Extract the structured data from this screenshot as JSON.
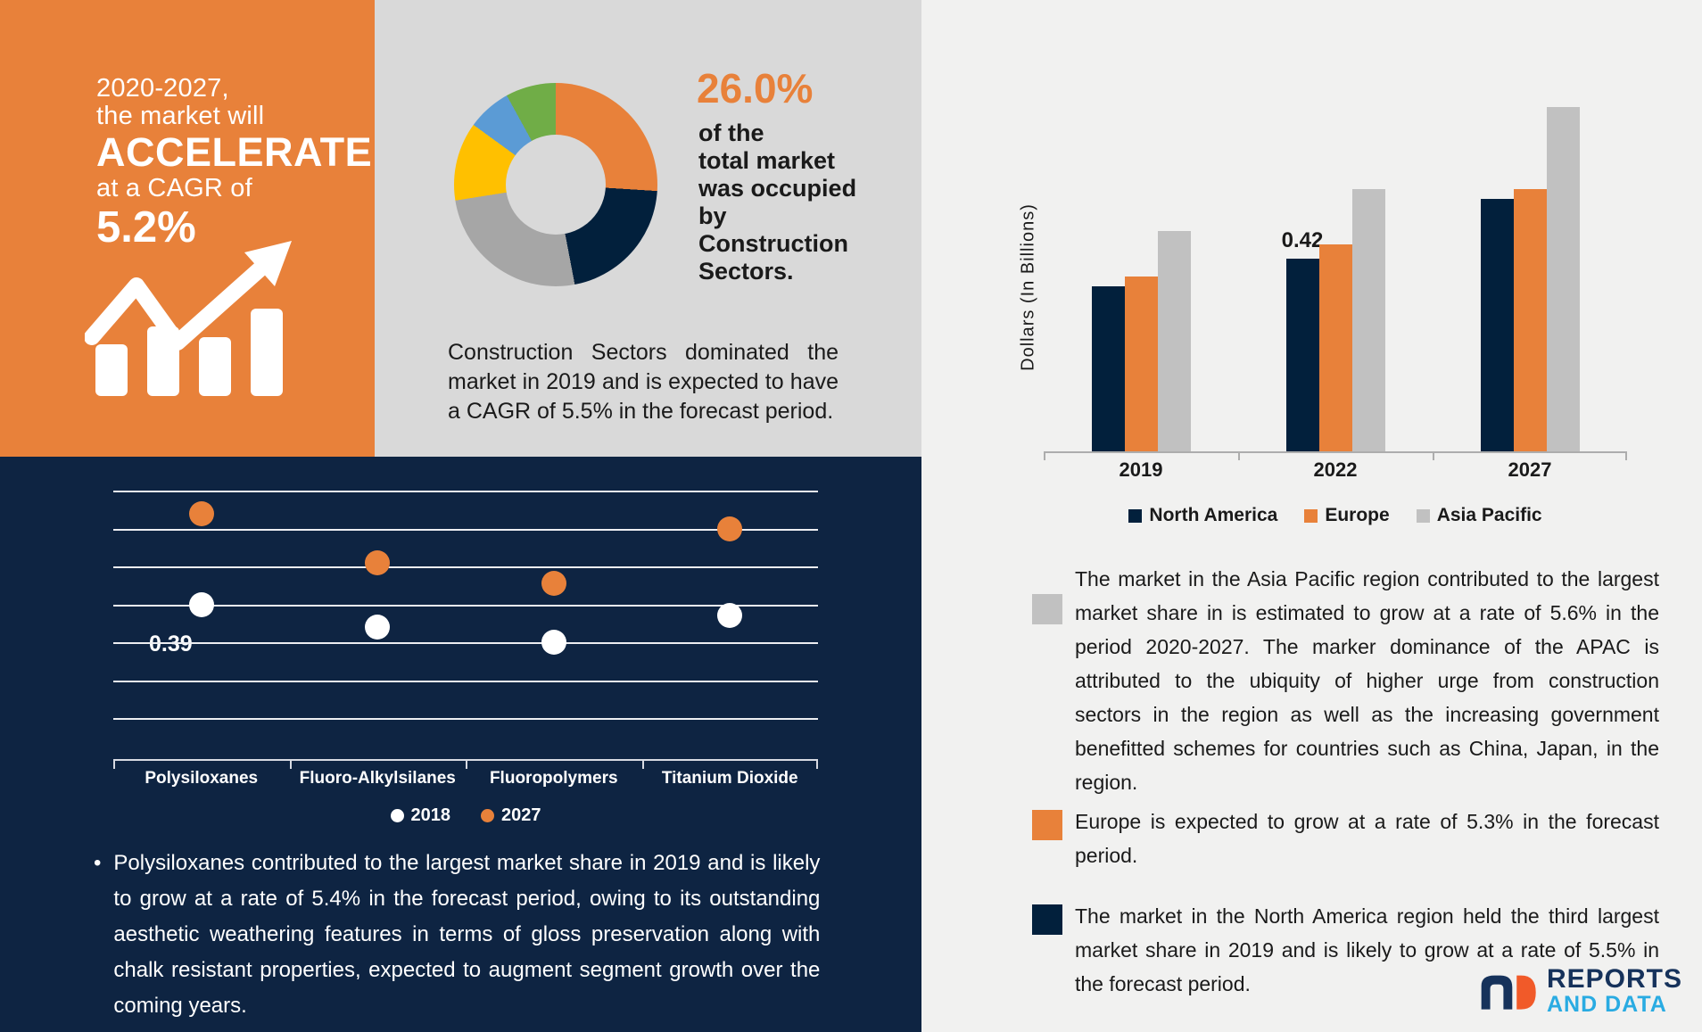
{
  "accelerate_panel": {
    "period": "2020-2027,",
    "line2": "the market will",
    "headline": "ACCELERATE",
    "line4": "at a CAGR of",
    "cagr": "5.2%"
  },
  "donut_panel": {
    "stat_value": "26.0%",
    "stat_lines": [
      "of the",
      "total market",
      "was occupied",
      "by",
      "Construction",
      "Sectors."
    ],
    "paragraph": "Construction Sectors dominated the market in 2019 and is expected to have a CAGR of 5.5% in the forecast period."
  },
  "segment_panel": {
    "bullet_glyph": "•",
    "bullet_text": "Polysiloxanes contributed to the largest market share in 2019 and is likely to grow at a rate of 5.4% in the forecast period, owing to its outstanding aesthetic weathering features in terms of gloss preservation along with chalk resistant properties, expected to augment segment growth over the coming years."
  },
  "region_panel": {
    "bullets": [
      {
        "color": "#C1C1C1",
        "text": "The market in the Asia Pacific region contributed to the largest market share in is estimated to grow at a rate of 5.6% in the period 2020-2027. The marker dominance of the APAC is attributed to the ubiquity of higher urge from construction sectors in the region as well as the increasing government benefitted schemes for countries such as China, Japan, in the region."
      },
      {
        "color": "#E8813A",
        "text": "Europe is expected to grow at a rate of 5.3% in the forecast period."
      },
      {
        "color": "#02203C",
        "text": "The market in the North America region held the third largest market share in 2019 and is likely to grow at a rate of 5.5% in the forecast period."
      }
    ]
  },
  "logo": {
    "line1": "REPORTS",
    "line2": "AND DATA",
    "navy": "#16325B",
    "cyan": "#29ABE2",
    "orange": "#F15A29"
  },
  "colors": {
    "accent_orange": "#E8813A",
    "chart_navy": "#02203C",
    "panel_navy": "#0E2442",
    "panel_gray": "#D9D9D9",
    "bar_gray": "#C1C1C1",
    "background": "#F1F1F0"
  },
  "chart_data": [
    {
      "type": "pie",
      "variant": "donut",
      "title": "",
      "note": "26.0% of the total market was occupied by Construction Sectors",
      "segments": [
        {
          "label": "Construction Sectors",
          "value": 26,
          "color": "#E8813A"
        },
        {
          "label": "",
          "value": 21,
          "color": "#02203C"
        },
        {
          "label": "",
          "value": 25.5,
          "color": "#A6A6A6"
        },
        {
          "label": "",
          "value": 12.5,
          "color": "#FFC000"
        },
        {
          "label": "",
          "value": 7,
          "color": "#5B9BD5"
        },
        {
          "label": "",
          "value": 8,
          "color": "#70AD47"
        }
      ]
    },
    {
      "type": "bar",
      "ylabel": "Dollars (In Billions)",
      "categories": [
        "2019",
        "2022",
        "2027"
      ],
      "ylim": [
        0,
        0.78
      ],
      "grid": false,
      "legend_position": "bottom",
      "series": [
        {
          "name": "North America",
          "color": "#02203C",
          "values": [
            0.36,
            0.42,
            0.55
          ]
        },
        {
          "name": "Europe",
          "color": "#E8813A",
          "values": [
            0.38,
            0.45,
            0.57
          ]
        },
        {
          "name": "Asia Pacific",
          "color": "#C1C1C1",
          "values": [
            0.48,
            0.57,
            0.75
          ]
        }
      ],
      "data_labels": [
        {
          "series_index": 0,
          "category_index": 1,
          "text": "0.42"
        }
      ]
    },
    {
      "type": "scatter",
      "categories": [
        "Polysiloxanes",
        "Fluoro-Alkylsilanes",
        "Fluoropolymers",
        "Titanium Dioxide"
      ],
      "ylim": [
        0.33,
        0.45
      ],
      "gridline_step": 0.02,
      "grid": true,
      "legend_position": "bottom",
      "series": [
        {
          "name": "2018",
          "color": "#FFFFFF",
          "values": [
            0.39,
            0.378,
            0.37,
            0.384
          ]
        },
        {
          "name": "2027",
          "color": "#E8813A",
          "values": [
            0.438,
            0.412,
            0.401,
            0.43
          ]
        }
      ],
      "data_labels": [
        {
          "series_index": 0,
          "category_index": 0,
          "text": "0.39"
        }
      ]
    }
  ]
}
